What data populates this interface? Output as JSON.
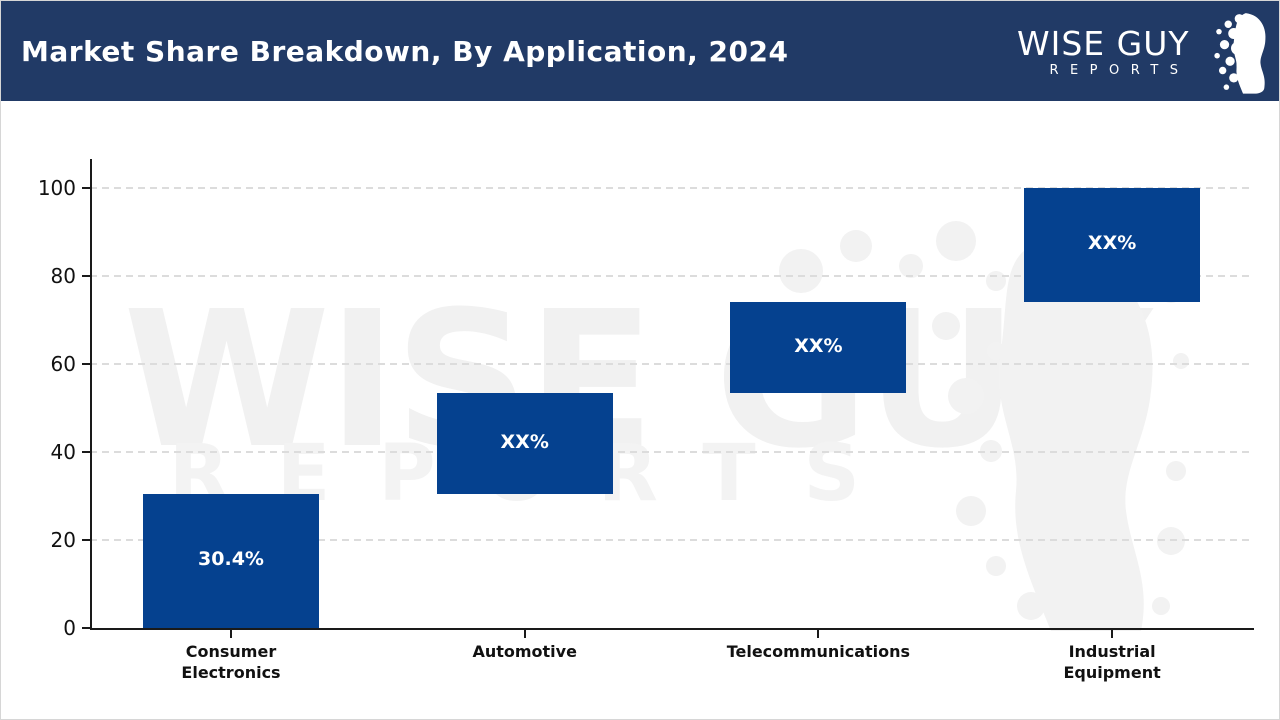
{
  "header": {
    "title": "Market Share Breakdown, By Application, 2024",
    "bg_color": "#213a66",
    "logo": {
      "line1": "WISE GUY",
      "line2": "REPORTS"
    }
  },
  "watermark": {
    "line1": "WISE GUY",
    "line2": "REPORTS"
  },
  "chart_data": {
    "type": "bar",
    "subtype": "waterfall",
    "title": "Market Share Breakdown, By Application, 2024",
    "categories": [
      "Consumer\nElectronics",
      "Automotive",
      "Telecommunications",
      "Industrial\nEquipment"
    ],
    "segments": [
      {
        "category": "Consumer Electronics",
        "start": 0,
        "end": 30.4,
        "value": 30.4,
        "label": "30.4%"
      },
      {
        "category": "Automotive",
        "start": 30.4,
        "end": 53.4,
        "value": 23.0,
        "label": "XX%"
      },
      {
        "category": "Telecommunications",
        "start": 53.4,
        "end": 74.1,
        "value": 20.7,
        "label": "XX%"
      },
      {
        "category": "Industrial Equipment",
        "start": 74.1,
        "end": 100,
        "value": 25.9,
        "label": "XX%"
      }
    ],
    "yticks": [
      0,
      20,
      40,
      60,
      80,
      100
    ],
    "ylim": [
      0,
      108
    ],
    "xlabel": "",
    "ylabel": "",
    "bar_color": "#05418f",
    "grid": "horizontal-dashed",
    "gridline_color": "#dcdcdc",
    "legend": "none"
  }
}
